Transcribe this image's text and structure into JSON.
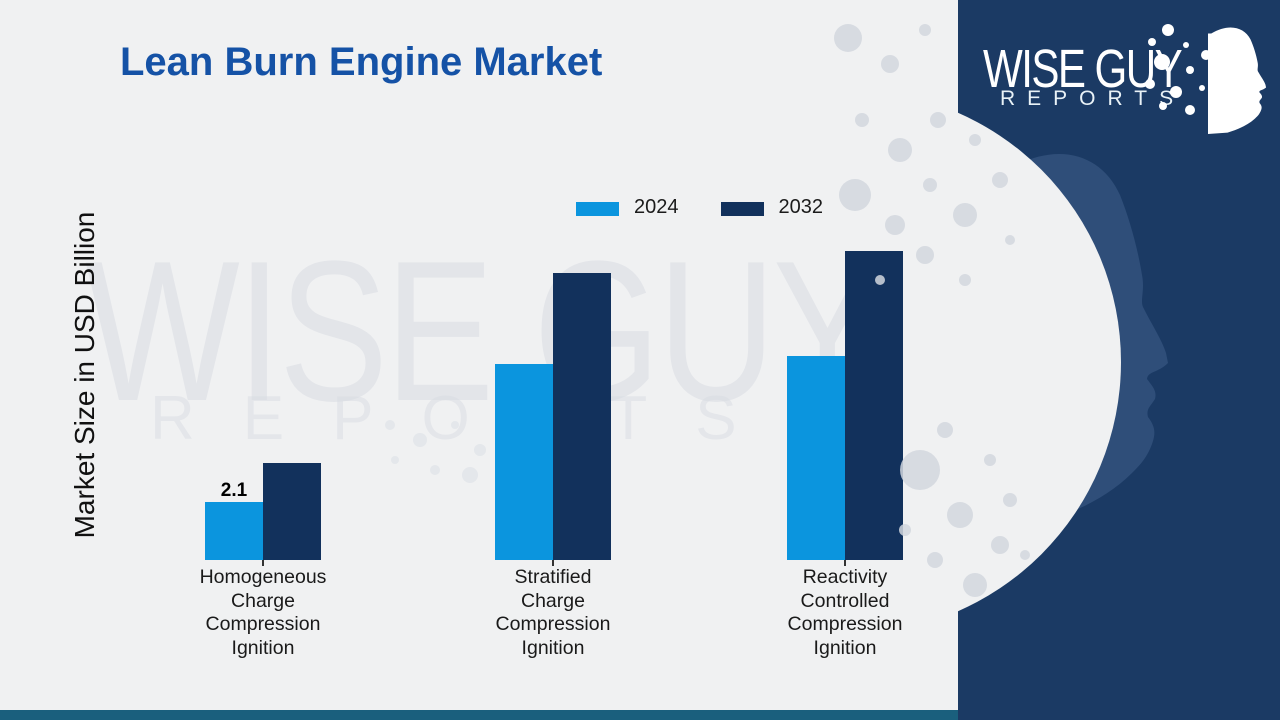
{
  "header": {
    "title": "Lean Burn Engine Market"
  },
  "logo": {
    "line1": "WISE GUY",
    "line2": "REPORTS"
  },
  "watermark": {
    "line1": "WISE GUY",
    "line2": "REPORTS"
  },
  "colors": {
    "background": "#f0f1f2",
    "title": "#1552a6",
    "bar_2024": "#0b95de",
    "bar_2032": "#12315c",
    "brand_panel": "#1b3a64",
    "face_silhouette": "#2f4e79",
    "bottom_bar": "#1a5f7d",
    "watermark_gray": "#d9dce3"
  },
  "chart_data": {
    "type": "bar",
    "title": "Lean Burn Engine Market",
    "xlabel": "",
    "ylabel": "Market Size in USD Billion",
    "categories": [
      "Homogeneous Charge Compression Ignition",
      "Stratified Charge Compression Ignition",
      "Reactivity Controlled Compression Ignition"
    ],
    "category_label_lines": [
      [
        "Homogeneous",
        "Charge",
        "Compression",
        "Ignition"
      ],
      [
        "Stratified",
        "Charge",
        "Compression",
        "Ignition"
      ],
      [
        "Reactivity",
        "Controlled",
        "Compression",
        "Ignition"
      ]
    ],
    "series": [
      {
        "name": "2024",
        "color": "#0b95de",
        "values": [
          2.1,
          7.1,
          7.4
        ]
      },
      {
        "name": "2032",
        "color": "#12315c",
        "values": [
          3.5,
          10.4,
          11.2
        ]
      }
    ],
    "data_labels": [
      {
        "series": "2024",
        "category_index": 0,
        "text": "2.1"
      }
    ],
    "ylim": [
      0,
      12
    ],
    "y_axis_ticks_visible": false,
    "grid": false,
    "legend_position": "top-right"
  }
}
